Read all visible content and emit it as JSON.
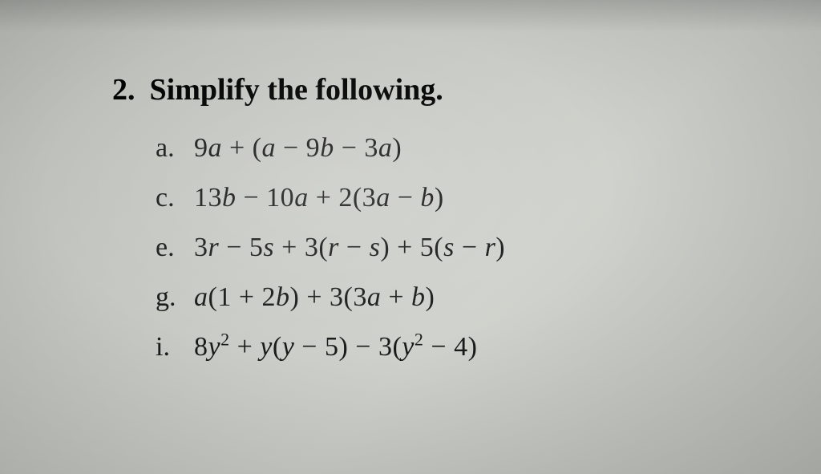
{
  "question": {
    "number": "2.",
    "title": "Simplify the following."
  },
  "items": [
    {
      "letter": "a.",
      "expr": "9<i>a</i> + (<i>a</i> − 9<i>b</i> − 3<i>a</i>)"
    },
    {
      "letter": "c.",
      "expr": "13<i>b</i> − 10<i>a</i> + 2(3<i>a</i> − <i>b</i>)"
    },
    {
      "letter": "e.",
      "expr": "3<i>r</i> − 5<i>s</i> + 3(<i>r</i> − <i>s</i>) + 5(<i>s</i> − <i>r</i>)"
    },
    {
      "letter": "g.",
      "expr": "<i>a</i>(1 + 2<i>b</i>) + 3(3<i>a</i> + <i>b</i>)"
    },
    {
      "letter": "i.",
      "expr": "8<i>y</i><sup>2</sup> + <i>y</i>(<i>y</i> − 5) − 3(<i>y</i><sup>2</sup> − 4)"
    }
  ],
  "styling": {
    "page_bg": "#c5c7c2",
    "text_color": "#1a1a1a",
    "title_fontsize": 38,
    "item_fontsize": 34,
    "font_family": "Georgia, Times New Roman, serif"
  }
}
